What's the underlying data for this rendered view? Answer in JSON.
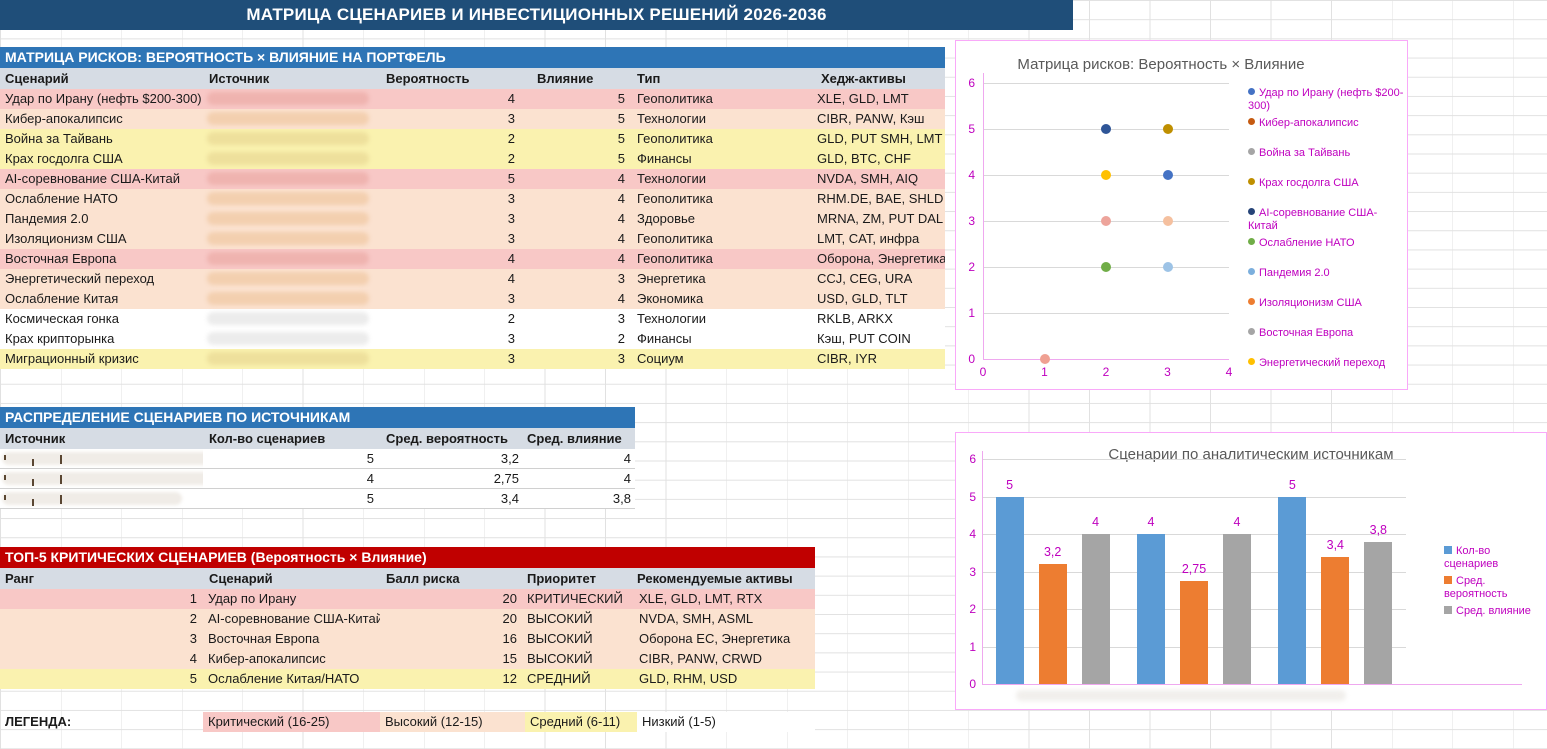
{
  "app": {
    "title": "МАТРИЦА СЦЕНАРИЕВ И ИНВЕСТИЦИОННЫХ РЕШЕНИЙ 2026-2036"
  },
  "colors": {
    "title_bar": "#1F4E79",
    "section_blue": "#2E75B6",
    "section_red": "#C00000",
    "column_header": "#D6DCE4",
    "pink": "#F8C8C6",
    "peach": "#FBE2D0",
    "yellow": "#FAF2AF",
    "white": "#FFFFFF",
    "chart_border": "#F9A9F9",
    "axis_pink": "#EFA8EF",
    "chart_gridline": "#D9D9D9",
    "magenta": "#BF00BF",
    "chart_title": "#595959"
  },
  "risk_matrix": {
    "header": "МАТРИЦА РИСКОВ: ВЕРОЯТНОСТЬ × ВЛИЯНИЕ НА ПОРТФЕЛЬ",
    "columns": [
      "Сценарий",
      "Источник",
      "Вероятность",
      "Влияние",
      "Тип",
      "Хедж-активы"
    ],
    "rows": [
      {
        "scenario": "Удар по Ирану (нефть $200-300)",
        "source": "",
        "probability": "4",
        "impact": "5",
        "type": "Геополитика",
        "hedge": "XLE, GLD, LMT",
        "tone": "pink"
      },
      {
        "scenario": "Кибер-апокалипсис",
        "source": "",
        "probability": "3",
        "impact": "5",
        "type": "Технологии",
        "hedge": "CIBR, PANW, Кэш",
        "tone": "peach"
      },
      {
        "scenario": "Война за Тайвань",
        "source": "",
        "probability": "2",
        "impact": "5",
        "type": "Геополитика",
        "hedge": "GLD, PUT SMH, LMT",
        "tone": "yellow"
      },
      {
        "scenario": "Крах госдолга США",
        "source": "",
        "probability": "2",
        "impact": "5",
        "type": "Финансы",
        "hedge": "GLD, BTC, CHF",
        "tone": "yellow"
      },
      {
        "scenario": "AI-соревнование США-Китай",
        "source": "",
        "probability": "5",
        "impact": "4",
        "type": "Технологии",
        "hedge": "NVDA, SMH, AIQ",
        "tone": "pink"
      },
      {
        "scenario": "Ослабление НАТО",
        "source": "",
        "probability": "3",
        "impact": "4",
        "type": "Геополитика",
        "hedge": "RHM.DE, BAE, SHLD",
        "tone": "peach"
      },
      {
        "scenario": "Пандемия 2.0",
        "source": "",
        "probability": "3",
        "impact": "4",
        "type": "Здоровье",
        "hedge": "MRNA, ZM, PUT DAL",
        "tone": "peach"
      },
      {
        "scenario": "Изоляционизм США",
        "source": "",
        "probability": "3",
        "impact": "4",
        "type": "Геополитика",
        "hedge": "LMT, CAT, инфра",
        "tone": "peach"
      },
      {
        "scenario": "Восточная Европа",
        "source": "",
        "probability": "4",
        "impact": "4",
        "type": "Геополитика",
        "hedge": "Оборона, Энергетика",
        "tone": "pink"
      },
      {
        "scenario": "Энергетический переход",
        "source": "",
        "probability": "4",
        "impact": "3",
        "type": "Энергетика",
        "hedge": "CCJ, CEG, URA",
        "tone": "peach"
      },
      {
        "scenario": "Ослабление Китая",
        "source": "",
        "probability": "3",
        "impact": "4",
        "type": "Экономика",
        "hedge": "USD, GLD, TLT",
        "tone": "peach"
      },
      {
        "scenario": "Космическая гонка",
        "source": "",
        "probability": "2",
        "impact": "3",
        "type": "Технологии",
        "hedge": "RKLB, ARKX",
        "tone": "white"
      },
      {
        "scenario": "Крах крипторынка",
        "source": "",
        "probability": "3",
        "impact": "2",
        "type": "Финансы",
        "hedge": "Кэш, PUT COIN",
        "tone": "white"
      },
      {
        "scenario": "Миграционный кризис",
        "source": "",
        "probability": "3",
        "impact": "3",
        "type": "Социум",
        "hedge": "CIBR, IYR",
        "tone": "yellow"
      }
    ]
  },
  "distribution": {
    "header": "РАСПРЕДЕЛЕНИЕ СЦЕНАРИЕВ ПО ИСТОЧНИКАМ",
    "columns": [
      "Источник",
      "Кол-во сценариев",
      "Сред. вероятность",
      "Сред. влияние"
    ],
    "rows": [
      {
        "source": "",
        "count": "5",
        "avg_probability": "3,2",
        "avg_impact": "4"
      },
      {
        "source": "",
        "count": "4",
        "avg_probability": "2,75",
        "avg_impact": "4"
      },
      {
        "source": "",
        "count": "5",
        "avg_probability": "3,4",
        "avg_impact": "3,8"
      }
    ]
  },
  "top5": {
    "header": "ТОП-5 КРИТИЧЕСКИХ СЦЕНАРИЕВ (Вероятность × Влияние)",
    "columns": [
      "Ранг",
      "Сценарий",
      "Балл риска",
      "Приоритет",
      "Рекомендуемые активы"
    ],
    "rows": [
      {
        "rank": "1",
        "scenario": "Удар по Ирану",
        "score": "20",
        "priority": "КРИТИЧЕСКИЙ",
        "assets": "XLE, GLD, LMT, RTX",
        "tone": "pink"
      },
      {
        "rank": "2",
        "scenario": "AI-соревнование США-Китай",
        "score": "20",
        "priority": "ВЫСОКИЙ",
        "assets": "NVDA, SMH, ASML",
        "tone": "peach"
      },
      {
        "rank": "3",
        "scenario": "Восточная Европа",
        "score": "16",
        "priority": "ВЫСОКИЙ",
        "assets": "Оборона ЕС, Энергетика",
        "tone": "peach"
      },
      {
        "rank": "4",
        "scenario": "Кибер-апокалипсис",
        "score": "15",
        "priority": "ВЫСОКИЙ",
        "assets": "CIBR, PANW, CRWD",
        "tone": "peach"
      },
      {
        "rank": "5",
        "scenario": "Ослабление Китая/НАТО",
        "score": "12",
        "priority": "СРЕДНИЙ",
        "assets": "GLD, RHM, USD",
        "tone": "yellow"
      }
    ]
  },
  "legend_row": {
    "label": "ЛЕГЕНДА:",
    "items": [
      {
        "text": "Критический (16-25)",
        "tone": "pink"
      },
      {
        "text": "Высокий (12-15)",
        "tone": "peach"
      },
      {
        "text": "Средний (6-11)",
        "tone": "yellow"
      },
      {
        "text": "Низкий (1-5)",
        "tone": "white"
      }
    ]
  },
  "chart_data": [
    {
      "type": "scatter",
      "title": "Матрица рисков: Вероятность × Влияние",
      "xlabel": "",
      "ylabel": "",
      "x_range": [
        0,
        4
      ],
      "y_range": [
        0,
        6
      ],
      "x_ticks": [
        "0",
        "1",
        "2",
        "3",
        "4"
      ],
      "y_ticks": [
        "0",
        "1",
        "2",
        "3",
        "4",
        "5",
        "6"
      ],
      "grid": true,
      "legend_position": "right",
      "points": [
        {
          "x": 2,
          "y": 5,
          "color": "#2F5597"
        },
        {
          "x": 3,
          "y": 5,
          "color": "#BF8F00"
        },
        {
          "x": 2,
          "y": 4,
          "color": "#FFC000"
        },
        {
          "x": 3,
          "y": 4,
          "color": "#4472C4"
        },
        {
          "x": 2,
          "y": 3,
          "color": "#EDA49B"
        },
        {
          "x": 3,
          "y": 3,
          "color": "#F5C09F"
        },
        {
          "x": 2,
          "y": 2,
          "color": "#70AD47"
        },
        {
          "x": 3,
          "y": 2,
          "color": "#9DC3E6"
        },
        {
          "x": 1,
          "y": 0,
          "color": "#EFA092"
        }
      ],
      "series_legend": [
        {
          "label": "Удар по Ирану (нефть $200-300)",
          "color": "#4472C4"
        },
        {
          "label": "Кибер-апокалипсис",
          "color": "#C55A11"
        },
        {
          "label": "Война за Тайвань",
          "color": "#A5A5A5"
        },
        {
          "label": "Крах госдолга США",
          "color": "#BF8F00"
        },
        {
          "label": "AI-соревнование США-Китай",
          "color": "#264478"
        },
        {
          "label": "Ослабление НАТО",
          "color": "#70AD47"
        },
        {
          "label": "Пандемия 2.0",
          "color": "#7CAFDD"
        },
        {
          "label": "Изоляционизм США",
          "color": "#ED7D31"
        },
        {
          "label": "Восточная Европа",
          "color": "#A5A5A5"
        },
        {
          "label": "Энергетический переход",
          "color": "#FFC000"
        }
      ]
    },
    {
      "type": "bar",
      "title": "Сценарии по аналитическим источникам",
      "categories": [
        "",
        "",
        ""
      ],
      "series": [
        {
          "name": "Кол-во сценариев",
          "color": "#5B9BD5",
          "values": [
            5,
            4,
            5
          ],
          "labels": [
            "5",
            "4",
            "5"
          ]
        },
        {
          "name": "Сред. вероятность",
          "color": "#ED7D31",
          "values": [
            3.2,
            2.75,
            3.4
          ],
          "labels": [
            "3,2",
            "2,75",
            "3,4"
          ]
        },
        {
          "name": "Сред. влияние",
          "color": "#A5A5A5",
          "values": [
            4,
            4,
            3.8
          ],
          "labels": [
            "4",
            "4",
            "3,8"
          ]
        }
      ],
      "ylim": [
        0,
        6
      ],
      "y_ticks": [
        "0",
        "1",
        "2",
        "3",
        "4",
        "5",
        "6"
      ],
      "grid": true,
      "legend_position": "right"
    }
  ]
}
